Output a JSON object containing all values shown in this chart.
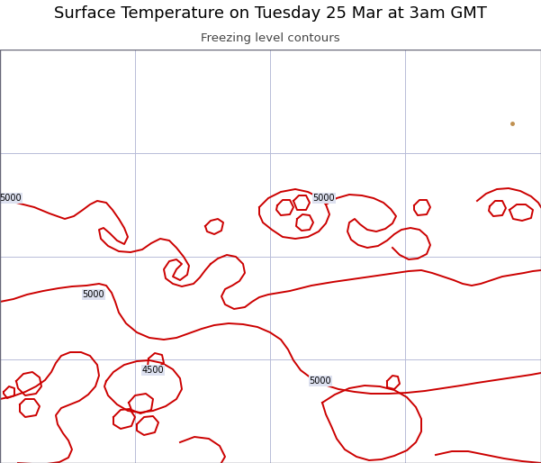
{
  "title": "Surface Temperature on Tuesday 25 Mar at 3am GMT",
  "subtitle": "Freezing level contours",
  "map_bg": "#dde1f0",
  "contour_color": "#cc0000",
  "grid_color": "#b8bcd8",
  "title_bg": "#ffffff",
  "figsize": [
    6.01,
    5.14
  ],
  "dpi": 100,
  "title_fontsize": 13,
  "subtitle_fontsize": 9.5,
  "label_fontsize": 7
}
